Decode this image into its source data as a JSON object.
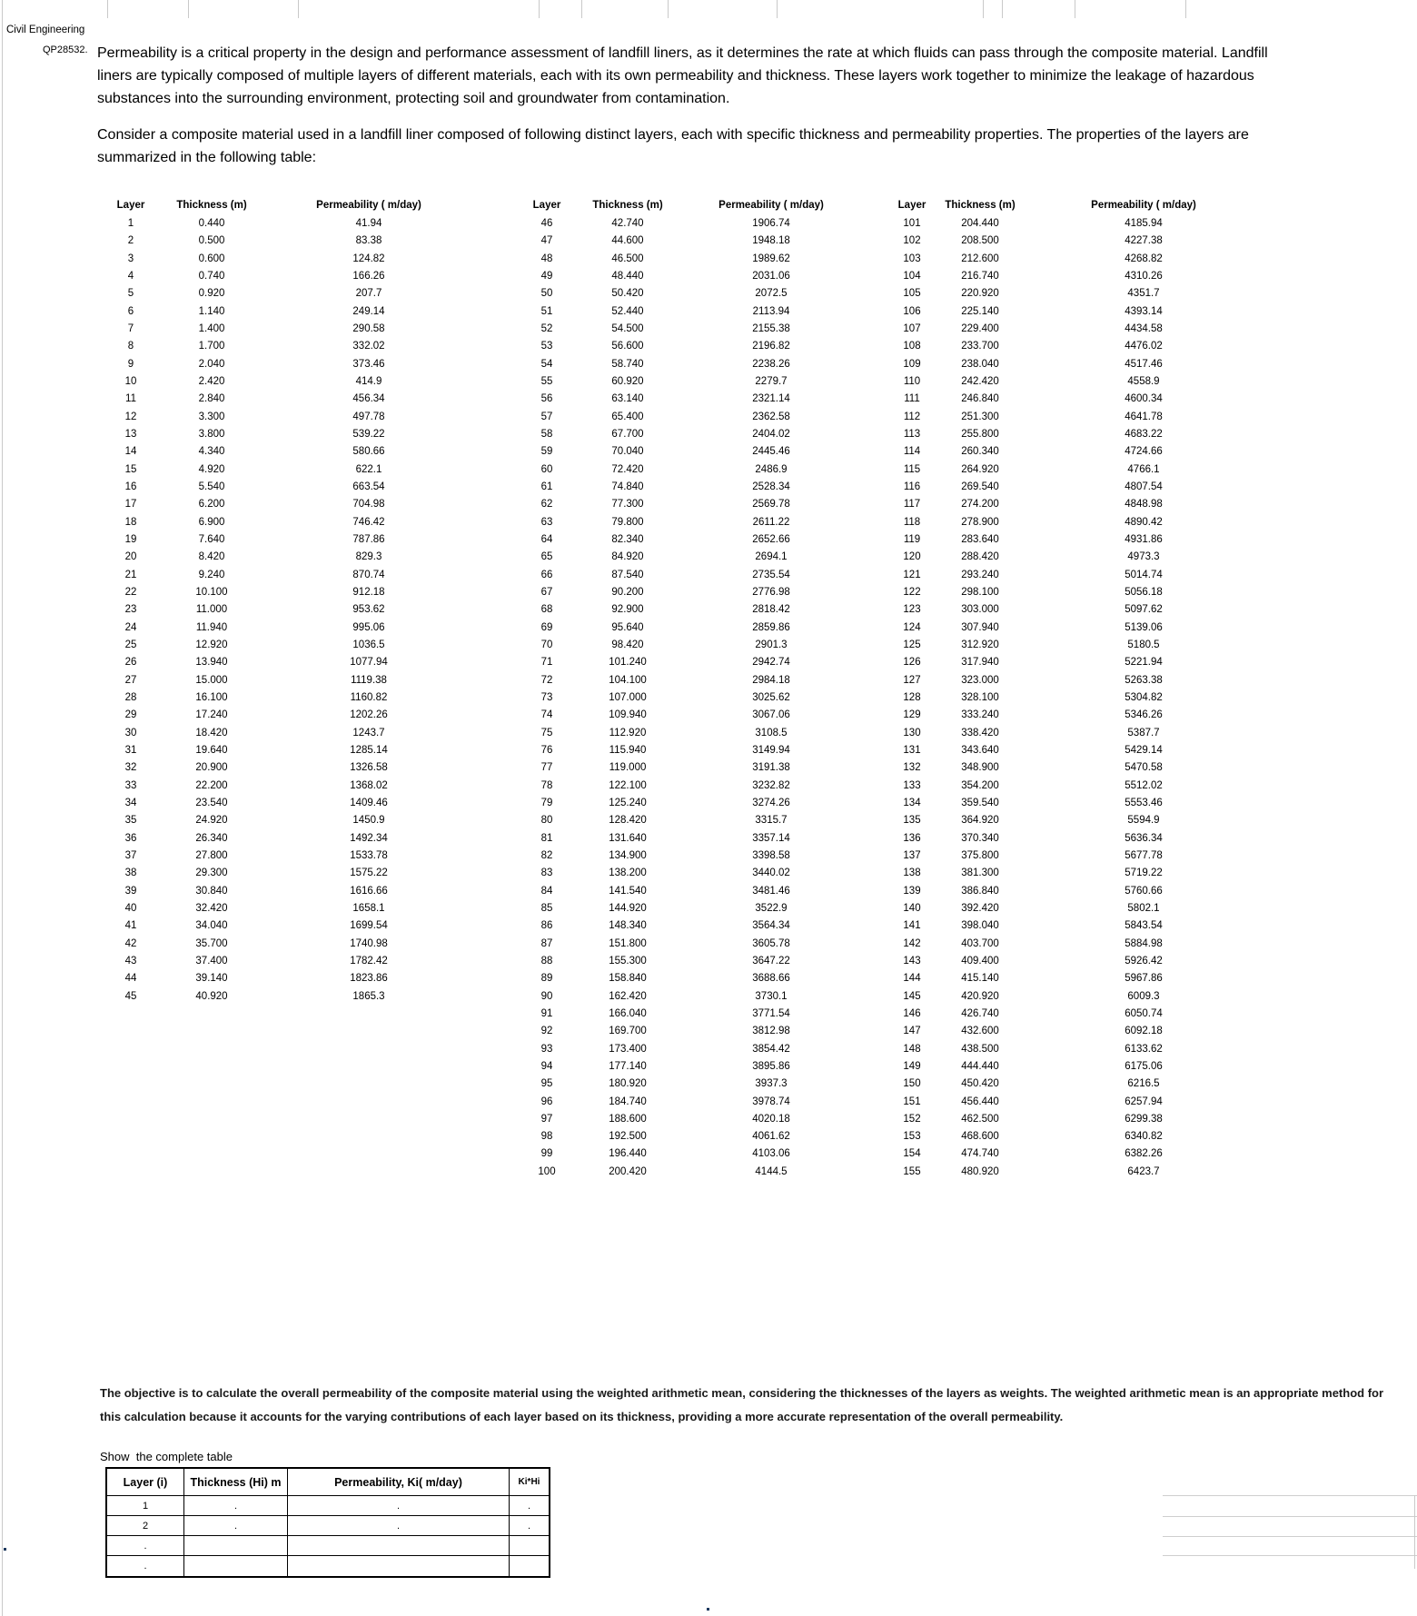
{
  "header": {
    "category": "Civil Engineering",
    "question_id": "QP28532.",
    "intro_lines": [
      "Permeability is a critical property in the design and performance assessment of landfill liners, as it determines the rate at which fluids can pass through the composite material. Landfill",
      "liners are typically composed of multiple layers of different materials, each with its own permeability and thickness. These layers work together to minimize the leakage of hazardous",
      "substances into the surrounding environment, protecting soil and groundwater from contamination."
    ],
    "consider_lines": [
      "Consider a composite material used in a landfill liner composed of following distinct layers, each with specific thickness and permeability properties. The properties of the layers are",
      "summarized in the following table:"
    ]
  },
  "layers_table": {
    "column_headers": {
      "layer": "Layer",
      "thickness": "Thickness (m)",
      "permeability": "Permeability ( m/day)"
    },
    "groups": [
      {
        "rows": [
          [
            "1",
            "0.440",
            "41.94"
          ],
          [
            "2",
            "0.500",
            "83.38"
          ],
          [
            "3",
            "0.600",
            "124.82"
          ],
          [
            "4",
            "0.740",
            "166.26"
          ],
          [
            "5",
            "0.920",
            "207.7"
          ],
          [
            "6",
            "1.140",
            "249.14"
          ],
          [
            "7",
            "1.400",
            "290.58"
          ],
          [
            "8",
            "1.700",
            "332.02"
          ],
          [
            "9",
            "2.040",
            "373.46"
          ],
          [
            "10",
            "2.420",
            "414.9"
          ],
          [
            "11",
            "2.840",
            "456.34"
          ],
          [
            "12",
            "3.300",
            "497.78"
          ],
          [
            "13",
            "3.800",
            "539.22"
          ],
          [
            "14",
            "4.340",
            "580.66"
          ],
          [
            "15",
            "4.920",
            "622.1"
          ],
          [
            "16",
            "5.540",
            "663.54"
          ],
          [
            "17",
            "6.200",
            "704.98"
          ],
          [
            "18",
            "6.900",
            "746.42"
          ],
          [
            "19",
            "7.640",
            "787.86"
          ],
          [
            "20",
            "8.420",
            "829.3"
          ],
          [
            "21",
            "9.240",
            "870.74"
          ],
          [
            "22",
            "10.100",
            "912.18"
          ],
          [
            "23",
            "11.000",
            "953.62"
          ],
          [
            "24",
            "11.940",
            "995.06"
          ],
          [
            "25",
            "12.920",
            "1036.5"
          ],
          [
            "26",
            "13.940",
            "1077.94"
          ],
          [
            "27",
            "15.000",
            "1119.38"
          ],
          [
            "28",
            "16.100",
            "1160.82"
          ],
          [
            "29",
            "17.240",
            "1202.26"
          ],
          [
            "30",
            "18.420",
            "1243.7"
          ],
          [
            "31",
            "19.640",
            "1285.14"
          ],
          [
            "32",
            "20.900",
            "1326.58"
          ],
          [
            "33",
            "22.200",
            "1368.02"
          ],
          [
            "34",
            "23.540",
            "1409.46"
          ],
          [
            "35",
            "24.920",
            "1450.9"
          ],
          [
            "36",
            "26.340",
            "1492.34"
          ],
          [
            "37",
            "27.800",
            "1533.78"
          ],
          [
            "38",
            "29.300",
            "1575.22"
          ],
          [
            "39",
            "30.840",
            "1616.66"
          ],
          [
            "40",
            "32.420",
            "1658.1"
          ],
          [
            "41",
            "34.040",
            "1699.54"
          ],
          [
            "42",
            "35.700",
            "1740.98"
          ],
          [
            "43",
            "37.400",
            "1782.42"
          ],
          [
            "44",
            "39.140",
            "1823.86"
          ],
          [
            "45",
            "40.920",
            "1865.3"
          ]
        ]
      },
      {
        "rows": [
          [
            "46",
            "42.740",
            "1906.74"
          ],
          [
            "47",
            "44.600",
            "1948.18"
          ],
          [
            "48",
            "46.500",
            "1989.62"
          ],
          [
            "49",
            "48.440",
            "2031.06"
          ],
          [
            "50",
            "50.420",
            "2072.5"
          ],
          [
            "51",
            "52.440",
            "2113.94"
          ],
          [
            "52",
            "54.500",
            "2155.38"
          ],
          [
            "53",
            "56.600",
            "2196.82"
          ],
          [
            "54",
            "58.740",
            "2238.26"
          ],
          [
            "55",
            "60.920",
            "2279.7"
          ],
          [
            "56",
            "63.140",
            "2321.14"
          ],
          [
            "57",
            "65.400",
            "2362.58"
          ],
          [
            "58",
            "67.700",
            "2404.02"
          ],
          [
            "59",
            "70.040",
            "2445.46"
          ],
          [
            "60",
            "72.420",
            "2486.9"
          ],
          [
            "61",
            "74.840",
            "2528.34"
          ],
          [
            "62",
            "77.300",
            "2569.78"
          ],
          [
            "63",
            "79.800",
            "2611.22"
          ],
          [
            "64",
            "82.340",
            "2652.66"
          ],
          [
            "65",
            "84.920",
            "2694.1"
          ],
          [
            "66",
            "87.540",
            "2735.54"
          ],
          [
            "67",
            "90.200",
            "2776.98"
          ],
          [
            "68",
            "92.900",
            "2818.42"
          ],
          [
            "69",
            "95.640",
            "2859.86"
          ],
          [
            "70",
            "98.420",
            "2901.3"
          ],
          [
            "71",
            "101.240",
            "2942.74"
          ],
          [
            "72",
            "104.100",
            "2984.18"
          ],
          [
            "73",
            "107.000",
            "3025.62"
          ],
          [
            "74",
            "109.940",
            "3067.06"
          ],
          [
            "75",
            "112.920",
            "3108.5"
          ],
          [
            "76",
            "115.940",
            "3149.94"
          ],
          [
            "77",
            "119.000",
            "3191.38"
          ],
          [
            "78",
            "122.100",
            "3232.82"
          ],
          [
            "79",
            "125.240",
            "3274.26"
          ],
          [
            "80",
            "128.420",
            "3315.7"
          ],
          [
            "81",
            "131.640",
            "3357.14"
          ],
          [
            "82",
            "134.900",
            "3398.58"
          ],
          [
            "83",
            "138.200",
            "3440.02"
          ],
          [
            "84",
            "141.540",
            "3481.46"
          ],
          [
            "85",
            "144.920",
            "3522.9"
          ],
          [
            "86",
            "148.340",
            "3564.34"
          ],
          [
            "87",
            "151.800",
            "3605.78"
          ],
          [
            "88",
            "155.300",
            "3647.22"
          ],
          [
            "89",
            "158.840",
            "3688.66"
          ],
          [
            "90",
            "162.420",
            "3730.1"
          ],
          [
            "91",
            "166.040",
            "3771.54"
          ],
          [
            "92",
            "169.700",
            "3812.98"
          ],
          [
            "93",
            "173.400",
            "3854.42"
          ],
          [
            "94",
            "177.140",
            "3895.86"
          ],
          [
            "95",
            "180.920",
            "3937.3"
          ],
          [
            "96",
            "184.740",
            "3978.74"
          ],
          [
            "97",
            "188.600",
            "4020.18"
          ],
          [
            "98",
            "192.500",
            "4061.62"
          ],
          [
            "99",
            "196.440",
            "4103.06"
          ],
          [
            "100",
            "200.420",
            "4144.5"
          ]
        ]
      },
      {
        "rows": [
          [
            "101",
            "204.440",
            "4185.94"
          ],
          [
            "102",
            "208.500",
            "4227.38"
          ],
          [
            "103",
            "212.600",
            "4268.82"
          ],
          [
            "104",
            "216.740",
            "4310.26"
          ],
          [
            "105",
            "220.920",
            "4351.7"
          ],
          [
            "106",
            "225.140",
            "4393.14"
          ],
          [
            "107",
            "229.400",
            "4434.58"
          ],
          [
            "108",
            "233.700",
            "4476.02"
          ],
          [
            "109",
            "238.040",
            "4517.46"
          ],
          [
            "110",
            "242.420",
            "4558.9"
          ],
          [
            "111",
            "246.840",
            "4600.34"
          ],
          [
            "112",
            "251.300",
            "4641.78"
          ],
          [
            "113",
            "255.800",
            "4683.22"
          ],
          [
            "114",
            "260.340",
            "4724.66"
          ],
          [
            "115",
            "264.920",
            "4766.1"
          ],
          [
            "116",
            "269.540",
            "4807.54"
          ],
          [
            "117",
            "274.200",
            "4848.98"
          ],
          [
            "118",
            "278.900",
            "4890.42"
          ],
          [
            "119",
            "283.640",
            "4931.86"
          ],
          [
            "120",
            "288.420",
            "4973.3"
          ],
          [
            "121",
            "293.240",
            "5014.74"
          ],
          [
            "122",
            "298.100",
            "5056.18"
          ],
          [
            "123",
            "303.000",
            "5097.62"
          ],
          [
            "124",
            "307.940",
            "5139.06"
          ],
          [
            "125",
            "312.920",
            "5180.5"
          ],
          [
            "126",
            "317.940",
            "5221.94"
          ],
          [
            "127",
            "323.000",
            "5263.38"
          ],
          [
            "128",
            "328.100",
            "5304.82"
          ],
          [
            "129",
            "333.240",
            "5346.26"
          ],
          [
            "130",
            "338.420",
            "5387.7"
          ],
          [
            "131",
            "343.640",
            "5429.14"
          ],
          [
            "132",
            "348.900",
            "5470.58"
          ],
          [
            "133",
            "354.200",
            "5512.02"
          ],
          [
            "134",
            "359.540",
            "5553.46"
          ],
          [
            "135",
            "364.920",
            "5594.9"
          ],
          [
            "136",
            "370.340",
            "5636.34"
          ],
          [
            "137",
            "375.800",
            "5677.78"
          ],
          [
            "138",
            "381.300",
            "5719.22"
          ],
          [
            "139",
            "386.840",
            "5760.66"
          ],
          [
            "140",
            "392.420",
            "5802.1"
          ],
          [
            "141",
            "398.040",
            "5843.54"
          ],
          [
            "142",
            "403.700",
            "5884.98"
          ],
          [
            "143",
            "409.400",
            "5926.42"
          ],
          [
            "144",
            "415.140",
            "5967.86"
          ],
          [
            "145",
            "420.920",
            "6009.3"
          ],
          [
            "146",
            "426.740",
            "6050.74"
          ],
          [
            "147",
            "432.600",
            "6092.18"
          ],
          [
            "148",
            "438.500",
            "6133.62"
          ],
          [
            "149",
            "444.440",
            "6175.06"
          ],
          [
            "150",
            "450.420",
            "6216.5"
          ],
          [
            "151",
            "456.440",
            "6257.94"
          ],
          [
            "152",
            "462.500",
            "6299.38"
          ],
          [
            "153",
            "468.600",
            "6340.82"
          ],
          [
            "154",
            "474.740",
            "6382.26"
          ],
          [
            "155",
            "480.920",
            "6423.7"
          ]
        ]
      }
    ]
  },
  "objective_lines": [
    "The objective is to calculate the overall permeability of the composite material using the weighted arithmetic mean, considering the thicknesses of the layers as weights. The weighted arithmetic mean is an appropriate method for",
    "this calculation because it accounts for the varying contributions of each layer based on its thickness, providing a more accurate representation of the overall permeability."
  ],
  "answer_table": {
    "show_label": "Show  the complete table",
    "headers": [
      "Layer (i)",
      "Thickness (Hi) m",
      "Permeability, Ki( m/day)",
      "Ki*Hi"
    ],
    "rows": [
      [
        "1",
        ".",
        ".",
        "."
      ],
      [
        "2",
        ".",
        ".",
        "."
      ],
      [
        ".",
        "",
        "",
        ""
      ],
      [
        ".",
        "",
        "",
        ""
      ]
    ]
  }
}
